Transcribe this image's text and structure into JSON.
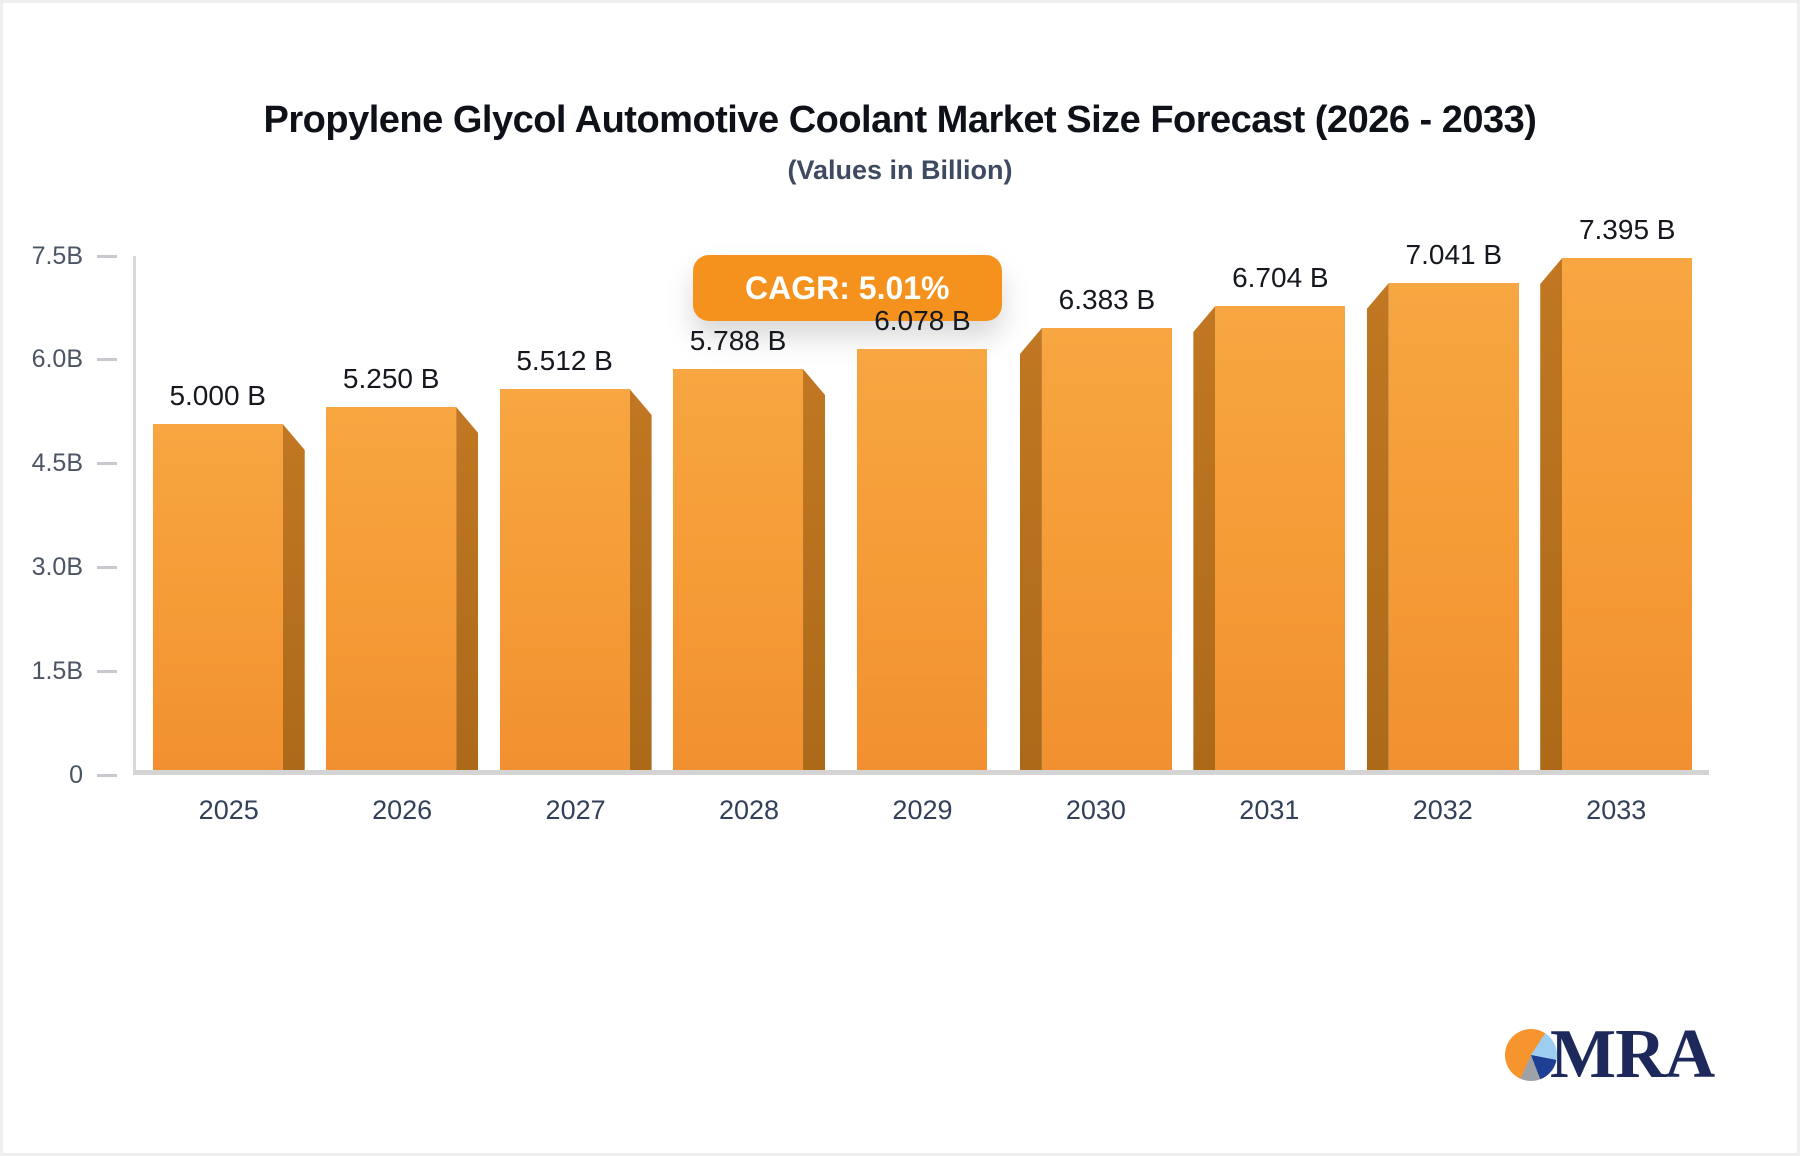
{
  "header": {
    "title": "Propylene Glycol Automotive Coolant Market Size Forecast (2026 - 2033)",
    "subtitle": "(Values in Billion)"
  },
  "badge": {
    "label": "CAGR: 5.01%"
  },
  "chart_data": {
    "type": "bar",
    "title": "Propylene Glycol Automotive Coolant Market Size Forecast (2026 - 2033)",
    "subtitle": "(Values in Billion)",
    "categories": [
      "2025",
      "2026",
      "2027",
      "2028",
      "2029",
      "2030",
      "2031",
      "2032",
      "2033"
    ],
    "values": [
      5.0,
      5.25,
      5.512,
      5.788,
      6.078,
      6.383,
      6.704,
      7.041,
      7.395
    ],
    "value_labels": [
      "5.000 B",
      "5.250 B",
      "5.512 B",
      "5.788 B",
      "6.078 B",
      "6.383 B",
      "6.704 B",
      "7.041 B",
      "7.395 B"
    ],
    "cagr": "5.01%",
    "xlabel": "",
    "ylabel": "",
    "ylim": [
      0,
      7.5
    ],
    "yticks": [
      {
        "label": "7.5B",
        "value": 7.5
      },
      {
        "label": "6.0B",
        "value": 6.0
      },
      {
        "label": "4.5B",
        "value": 4.5
      },
      {
        "label": "3.0B",
        "value": 3.0
      },
      {
        "label": "1.5B",
        "value": 1.5
      },
      {
        "label": "0",
        "value": 0
      }
    ],
    "grid": false,
    "legend": false,
    "bar_style": "3d-perspective-center"
  },
  "colors": {
    "bar_face_top": "#F7A641",
    "bar_face_mid": "#F59C37",
    "bar_face_bottom": "#F19030",
    "bar_side_top": "#C17722",
    "bar_side_bottom": "#AC6A19",
    "badge_bg": "#F5921E",
    "logo_orange": "#F6952D",
    "logo_lightblue": "#9BCEF0",
    "logo_navy": "#1E3F94",
    "logo_gray": "#9EA2A6",
    "logo_navy_text": "#1D295A"
  },
  "logo": {
    "text": "MRA"
  }
}
